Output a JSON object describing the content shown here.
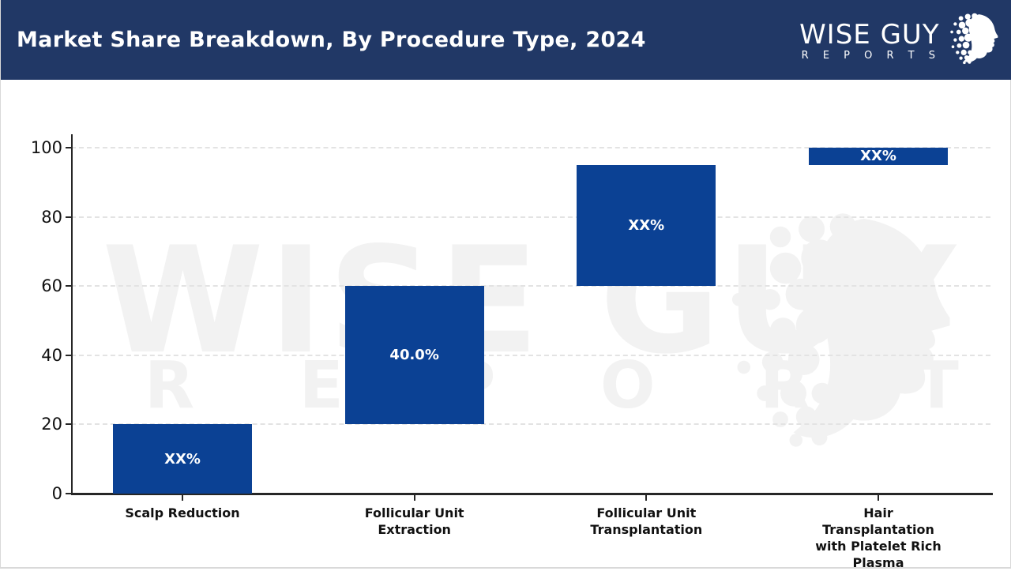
{
  "header": {
    "title": "Market Share Breakdown, By Procedure Type, 2024",
    "logo": {
      "line1": "WISE GUY",
      "line2": "R E P O R T S"
    }
  },
  "watermark": {
    "line1": "WISE GUY",
    "line2": "R E P O R T S"
  },
  "chart_data": {
    "type": "bar",
    "subtype": "waterfall",
    "title": "Market Share Breakdown, By Procedure Type, 2024",
    "categories": [
      "Scalp Reduction",
      "Follicular Unit Extraction",
      "Follicular Unit Transplantation",
      "Hair Transplantation with Platelet Rich Plasma"
    ],
    "category_label_lines": [
      [
        "Scalp Reduction"
      ],
      [
        "Follicular Unit",
        "Extraction"
      ],
      [
        "Follicular Unit",
        "Transplantation"
      ],
      [
        "Hair",
        "Transplantation",
        "with Platelet Rich",
        "Plasma"
      ]
    ],
    "segments": [
      {
        "category": "Scalp Reduction",
        "start": 0,
        "end": 20,
        "label": "XX%"
      },
      {
        "category": "Follicular Unit Extraction",
        "start": 20,
        "end": 60,
        "label": "40.0%"
      },
      {
        "category": "Follicular Unit Transplantation",
        "start": 60,
        "end": 95,
        "label": "XX%"
      },
      {
        "category": "Hair Transplantation with Platelet Rich Plasma",
        "start": 95,
        "end": 100,
        "label": "XX%"
      }
    ],
    "xlabel": "",
    "ylabel": "",
    "y_ticks": [
      0,
      20,
      40,
      60,
      80,
      100
    ],
    "ylim": [
      0,
      104
    ],
    "grid": true,
    "grid_style": "dashed-horizontal",
    "legend": false,
    "colors": {
      "bar": "#0B4194",
      "bar_label": "#ffffff",
      "grid": "#e3e3e3",
      "axis": "#262626",
      "tick_label": "#111111",
      "header_bg": "#213866",
      "header_text": "#ffffff",
      "watermark": "#f2f2f2"
    }
  }
}
